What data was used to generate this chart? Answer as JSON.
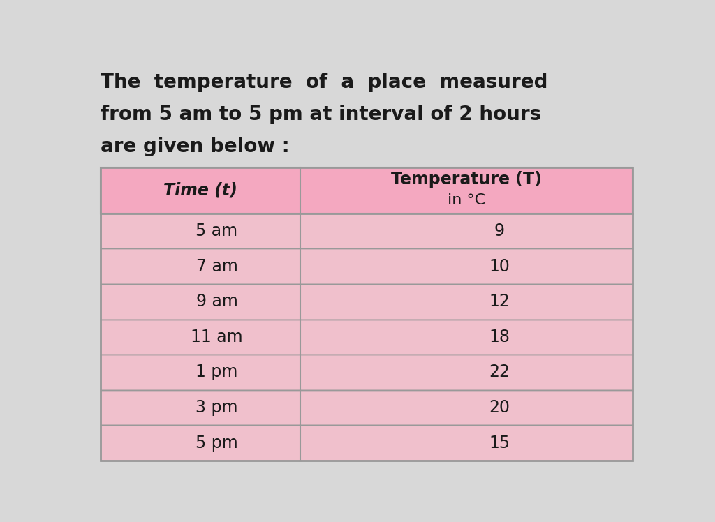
{
  "title_line1": "The  temperature  of  a  place  measured",
  "title_line2": "from 5 am to 5 pm at interval of 2 hours",
  "title_line3": "are given below :",
  "col1_header": "Time (t)",
  "col2_header_line1": "Temperature (T)",
  "col2_header_line2": "in °C",
  "times": [
    "5 am",
    "7 am",
    "9 am",
    "11 am",
    "1 pm",
    "3 pm",
    "5 pm"
  ],
  "temperatures": [
    "9",
    "10",
    "12",
    "18",
    "22",
    "20",
    "15"
  ],
  "header_bg": "#F4A8C0",
  "row_bg": "#F0C0CC",
  "border_color": "#999999",
  "text_color": "#1a1a1a",
  "title_color": "#1a1a1a",
  "page_bg": "#D8D8D8",
  "title_fontsize": 20,
  "header_fontsize": 17,
  "data_fontsize": 17
}
